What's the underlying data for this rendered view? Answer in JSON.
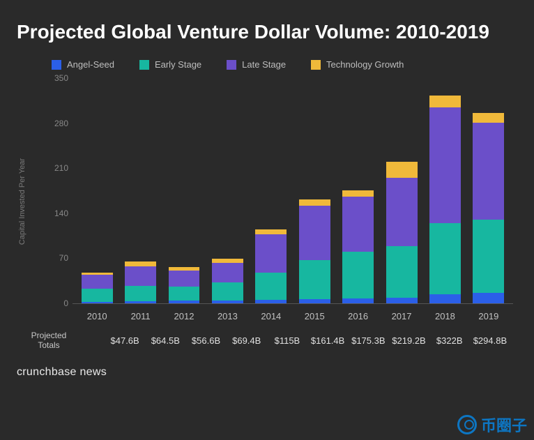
{
  "title": "Projected Global Venture Dollar Volume: 2010-2019",
  "ylabel": "Capital Invested Per Year",
  "totals_label_l1": "Projected",
  "totals_label_l2": "Totals",
  "footer": "crunchbase news",
  "watermark": "币圈子",
  "colors": {
    "angel": "#2b5fe8",
    "early": "#17b7a0",
    "late": "#6b4fc9",
    "tech": "#f0b93a",
    "bg": "#2a2a2a",
    "text_muted": "#888888"
  },
  "legend": [
    {
      "label": "Angel-Seed",
      "color": "#2b5fe8"
    },
    {
      "label": "Early Stage",
      "color": "#17b7a0"
    },
    {
      "label": "Late Stage",
      "color": "#6b4fc9"
    },
    {
      "label": "Technology Growth",
      "color": "#f0b93a"
    }
  ],
  "chart": {
    "type": "stacked-bar",
    "ylim": [
      0,
      350
    ],
    "yticks": [
      0,
      70,
      140,
      210,
      280,
      350
    ],
    "categories": [
      "2010",
      "2011",
      "2012",
      "2013",
      "2014",
      "2015",
      "2016",
      "2017",
      "2018",
      "2019"
    ],
    "series": {
      "angel": [
        2.5,
        3.5,
        4.0,
        4.5,
        5.5,
        7.0,
        8.0,
        9.0,
        14,
        16
      ],
      "early": [
        20,
        24,
        22,
        28,
        42,
        60,
        72,
        80,
        110,
        114
      ],
      "late": [
        22,
        30,
        25,
        30,
        60,
        84,
        85,
        106,
        180,
        150
      ],
      "tech": [
        3.1,
        7.0,
        5.6,
        6.9,
        7.5,
        10.4,
        10.3,
        24.2,
        18,
        14.8
      ]
    },
    "totals": [
      "$47.6B",
      "$64.5B",
      "$56.6B",
      "$69.4B",
      "$115B",
      "$161.4B",
      "$175.3B",
      "$219.2B",
      "$322B",
      "$294.8B"
    ]
  }
}
